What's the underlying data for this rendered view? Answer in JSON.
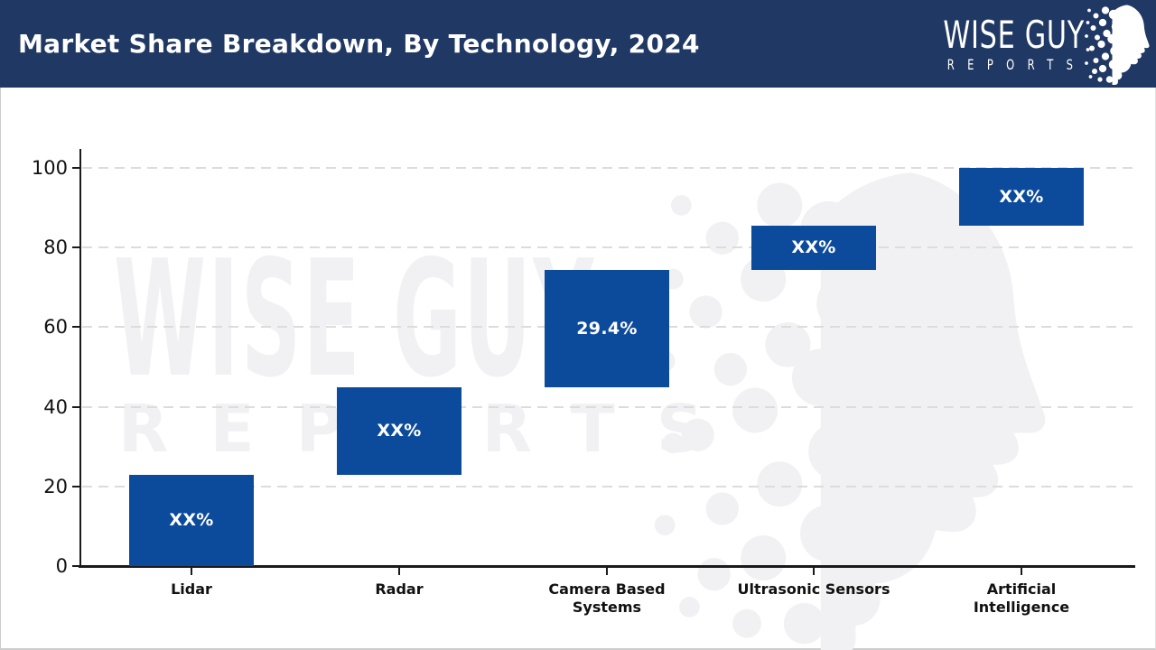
{
  "header": {
    "title": "Market Share Breakdown, By Technology, 2024",
    "bg_color": "#203864",
    "logo": {
      "wordmark": "WISE GUY",
      "subtitle": "REPORTS"
    }
  },
  "watermark": {
    "wordmark": "WISE GUY",
    "subtitle": "REPORTS"
  },
  "chart_data": {
    "type": "bar",
    "subtype": "waterfall",
    "title": "Market Share Breakdown, By Technology, 2024",
    "categories": [
      "Lidar",
      "Radar",
      "Camera Based Systems",
      "Ultrasonic Sensors",
      "Artificial Intelligence"
    ],
    "category_display_lines": [
      [
        "Lidar"
      ],
      [
        "Radar"
      ],
      [
        "Camera Based",
        "Systems"
      ],
      [
        "Ultrasonic Sensors"
      ],
      [
        "Artificial",
        "Intelligence"
      ]
    ],
    "segments": [
      {
        "category": "Lidar",
        "start": 0,
        "end": 23,
        "label": "XX%"
      },
      {
        "category": "Radar",
        "start": 23,
        "end": 45,
        "label": "XX%"
      },
      {
        "category": "Camera Based Systems",
        "start": 45,
        "end": 74.4,
        "label": "29.4%"
      },
      {
        "category": "Ultrasonic Sensors",
        "start": 74.4,
        "end": 85.6,
        "label": "XX%"
      },
      {
        "category": "Artificial Intelligence",
        "start": 85.6,
        "end": 100,
        "label": "XX%"
      }
    ],
    "ylim": [
      0,
      100
    ],
    "yticks": [
      0,
      20,
      40,
      60,
      80,
      100
    ],
    "xlabel": "",
    "ylabel": "",
    "legend": "none",
    "grid": "horizontal-dashed",
    "bar_color": "#0c4a9c",
    "grid_color": "#dcdcdc",
    "axis_color": "#1a1a1a"
  }
}
